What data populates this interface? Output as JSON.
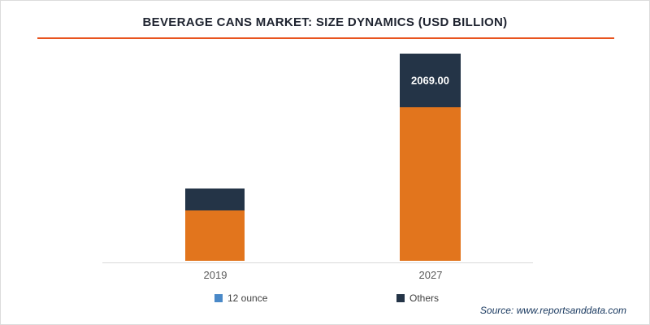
{
  "title": "BEVERAGE CANS MARKET: SIZE DYNAMICS (USD BILLION)",
  "source": "Source: www.reportsanddata.com",
  "colors": {
    "accent_line": "#E8531E",
    "bar_12ounce": "#E2751D",
    "bar_others": "#243447",
    "legend_12ounce_swatch": "#4A89C8",
    "legend_others_swatch": "#243447",
    "axis_line": "#D9D9D9",
    "data_label_text": "#FFFFFF"
  },
  "legend": [
    {
      "label": "12 ounce",
      "color": "#4A89C8"
    },
    {
      "label": "Others",
      "color": "#243447"
    }
  ],
  "chart_data": {
    "type": "bar",
    "stacked": true,
    "title": "BEVERAGE CANS MARKET: SIZE DYNAMICS (USD BILLION)",
    "categories": [
      "2019",
      "2027"
    ],
    "series": [
      {
        "name": "12 ounce",
        "color": "#E2751D",
        "values": [
          505,
          1535
        ]
      },
      {
        "name": "Others",
        "color": "#243447",
        "values": [
          220,
          534
        ]
      }
    ],
    "totals": [
      725,
      2069
    ],
    "data_labels": [
      "",
      "2069.00"
    ],
    "ylabel": "USD Billion",
    "ylim": [
      0,
      2100
    ],
    "grid": false,
    "legend_position": "bottom"
  }
}
